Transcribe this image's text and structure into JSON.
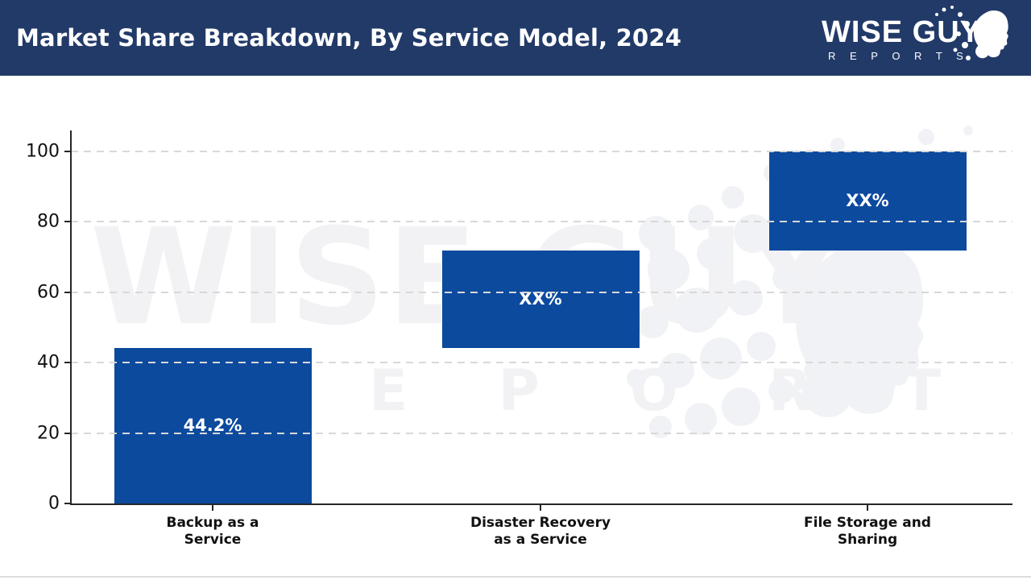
{
  "header": {
    "title": "Market Share Breakdown, By Service Model, 2024",
    "bg_color": "#223a68",
    "logo": {
      "line1": "WISE GUY",
      "line2": "R E P O R T S"
    }
  },
  "watermark": {
    "line1": "WISE GUY",
    "line2": "R E P O R T S"
  },
  "chart_data": {
    "type": "bar",
    "subtype": "floating-waterfall",
    "title": "Market Share Breakdown, By Service Model, 2024",
    "categories": [
      "Backup as a\nService",
      "Disaster Recovery\nas a Service",
      "File Storage and\nSharing"
    ],
    "series": [
      {
        "name": "Backup as a Service",
        "start": 0,
        "end": 44.2,
        "label": "44.2%"
      },
      {
        "name": "Disaster Recovery as a Service",
        "start": 44.2,
        "end": 71.8,
        "label": "XX%"
      },
      {
        "name": "File Storage and Sharing",
        "start": 71.8,
        "end": 100,
        "label": "XX%"
      }
    ],
    "yticks": [
      0,
      20,
      40,
      60,
      80,
      100
    ],
    "ylim": [
      0,
      106
    ],
    "grid": "horizontal-dashed",
    "legend": "none",
    "bar_color": "#0c4a9e",
    "label_color": "#ffffff",
    "axis_color": "#262626",
    "grid_color": "#d8d8d8"
  }
}
